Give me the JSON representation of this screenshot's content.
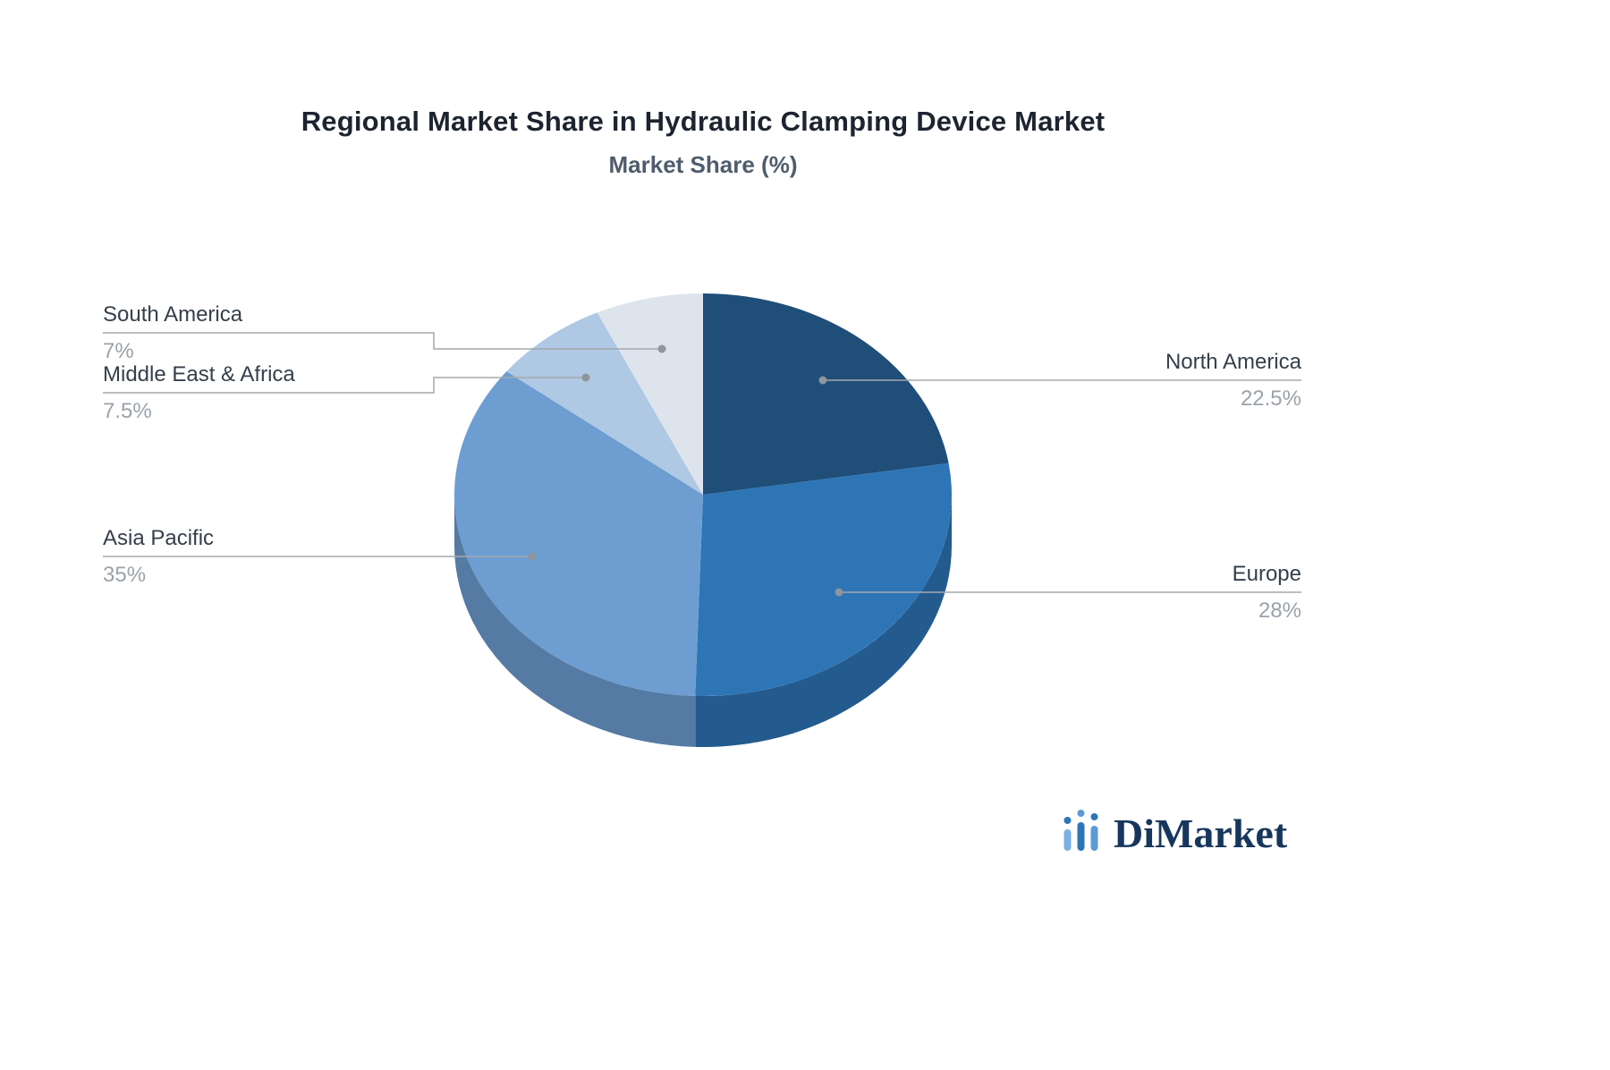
{
  "title": "Regional Market Share in Hydraulic Clamping Device Market",
  "subtitle": "Market Share (%)",
  "logo": {
    "text": "DiMarket"
  },
  "chart_data": {
    "type": "pie",
    "title": "Regional Market Share in Hydraulic Clamping Device Market",
    "subtitle": "Market Share (%)",
    "unit": "%",
    "style": "3d",
    "start_angle_deg": 0,
    "direction": "clockwise",
    "legend_position": "callout-labels",
    "series": [
      {
        "name": "North America",
        "value": 22.5,
        "label": "22.5%",
        "color": "#1F4E79"
      },
      {
        "name": "Europe",
        "value": 28,
        "label": "28%",
        "color": "#2E75B6"
      },
      {
        "name": "Asia Pacific",
        "value": 35,
        "label": "35%",
        "color": "#6D9DD1"
      },
      {
        "name": "Middle East & Africa",
        "value": 7.5,
        "label": "7.5%",
        "color": "#AFC8E3"
      },
      {
        "name": "South America",
        "value": 7,
        "label": "7%",
        "color": "#DEE4EE"
      }
    ]
  }
}
